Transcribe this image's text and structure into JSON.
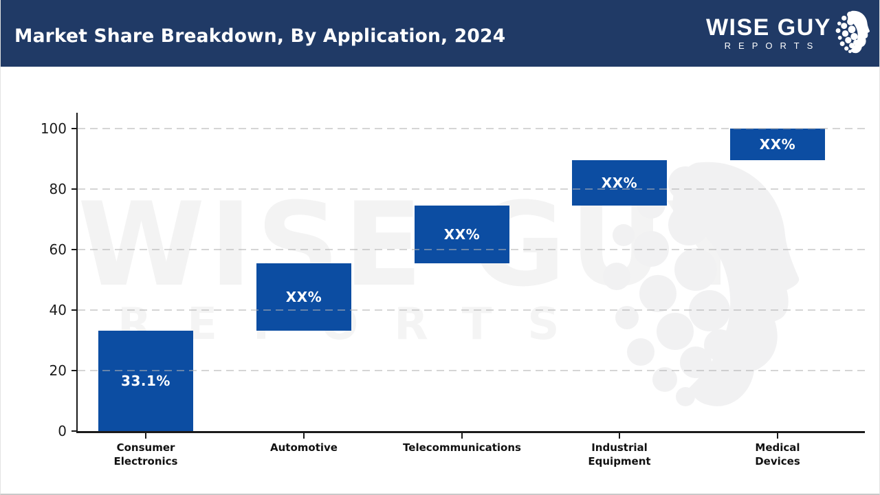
{
  "header": {
    "title": "Market Share Breakdown, By Application, 2024",
    "logo": {
      "name": "WISE GUY",
      "tagline": "REPORTS"
    }
  },
  "watermark": {
    "line1": "WISE GUY",
    "line2": "REPORTS"
  },
  "chart_data": {
    "type": "bar",
    "variant": "waterfall",
    "title": "Market Share Breakdown, By Application, 2024",
    "categories": [
      "Consumer Electronics",
      "Automotive",
      "Telecommunications",
      "Industrial Equipment",
      "Medical Devices"
    ],
    "category_lines": [
      [
        "Consumer",
        "Electronics"
      ],
      [
        "Automotive"
      ],
      [
        "Telecommunications"
      ],
      [
        "Industrial",
        "Equipment"
      ],
      [
        "Medical",
        "Devices"
      ]
    ],
    "segments": [
      {
        "category": "Consumer Electronics",
        "start": 0,
        "end": 33.1,
        "value": 33.1,
        "label": "33.1%"
      },
      {
        "category": "Automotive",
        "start": 33.1,
        "end": 55.4,
        "value": 22.3,
        "label": "XX%"
      },
      {
        "category": "Telecommunications",
        "start": 55.4,
        "end": 74.5,
        "value": 19.1,
        "label": "XX%"
      },
      {
        "category": "Industrial Equipment",
        "start": 74.5,
        "end": 89.5,
        "value": 15.0,
        "label": "XX%"
      },
      {
        "category": "Medical Devices",
        "start": 89.5,
        "end": 100,
        "value": 10.5,
        "label": "XX%"
      }
    ],
    "xlabel": "",
    "ylabel": "",
    "ylim": [
      0,
      100
    ],
    "yticks": [
      0,
      20,
      40,
      60,
      80,
      100
    ],
    "grid": true,
    "grid_style": "dashed",
    "legend": false,
    "colors": {
      "bar": "#0c4da2",
      "bar_label": "#ffffff",
      "axis": "#1a1a1a",
      "grid": "#d9d9d9",
      "header_bg": "#203a66",
      "header_text": "#ffffff",
      "watermark": "#f3f3f3"
    }
  }
}
